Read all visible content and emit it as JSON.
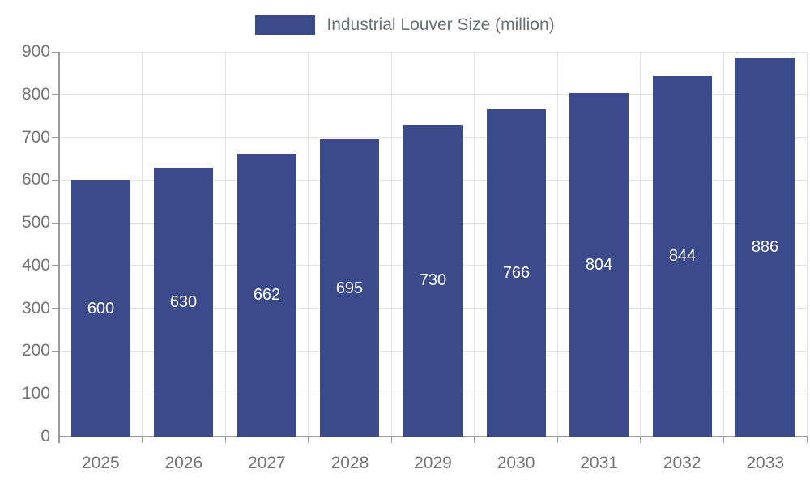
{
  "chart_data": {
    "type": "bar",
    "title": "Industrial Louver Size (million)",
    "categories": [
      "2025",
      "2026",
      "2027",
      "2028",
      "2029",
      "2030",
      "2031",
      "2032",
      "2033"
    ],
    "values": [
      600,
      630,
      662,
      695,
      730,
      766,
      804,
      844,
      886
    ],
    "xlabel": "",
    "ylabel": "",
    "ylim": [
      0,
      900
    ],
    "ytick_step": 100,
    "grid": true,
    "legend_position": "top-center",
    "colors": {
      "bar": "#3A4A8B",
      "bar_value_label": "#FFFFFF",
      "grid_line": "#E3E3E3",
      "axis_line": "#9B9B9B",
      "tick_label": "#757575",
      "legend_text": "#6E7079",
      "background": "#FFFFFF"
    }
  }
}
